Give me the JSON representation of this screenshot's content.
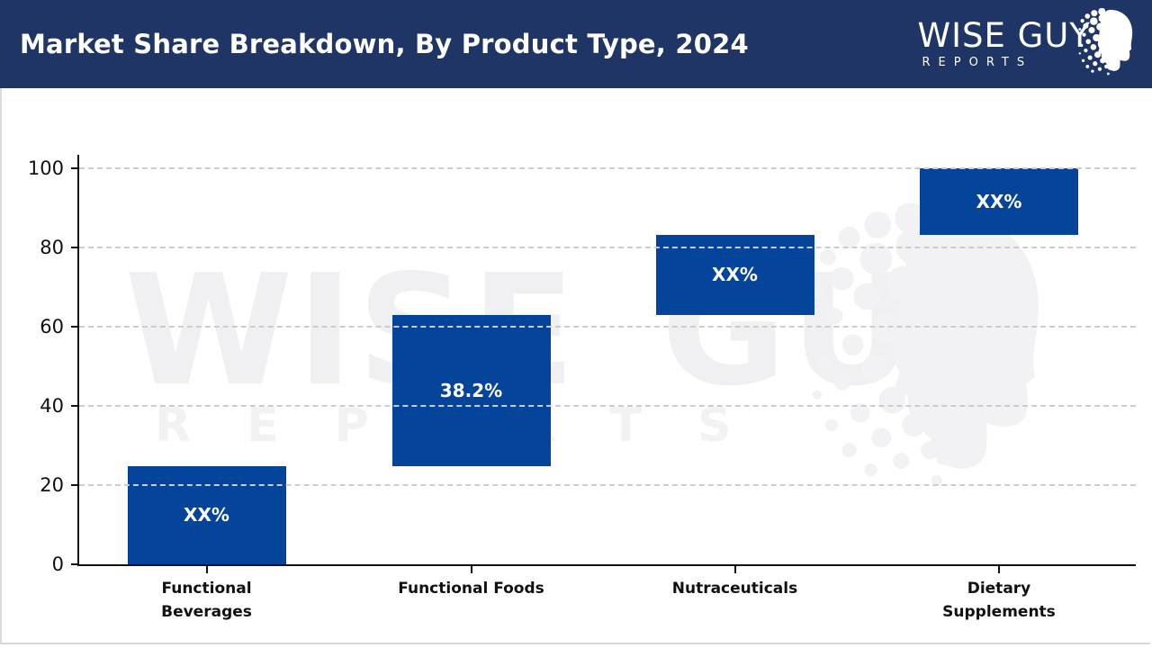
{
  "header": {
    "title": "Market Share Breakdown, By Product Type, 2024",
    "bg_color": "#1f3565",
    "text_color": "#ffffff",
    "logo": {
      "line1": "WISE GUY",
      "line2": "REPORTS",
      "face_icon": "dotted-head-profile"
    }
  },
  "watermark": {
    "line1": "WISE GUY",
    "line2": "REPORTS",
    "head_icon": "dotted-head-profile",
    "color": "#f0f0f2"
  },
  "chart_data": {
    "type": "bar",
    "subtype": "waterfall-floating-bars",
    "title": "Market Share Breakdown, By Product Type, 2024",
    "xlabel": "",
    "ylabel": "",
    "categories": [
      "Functional Beverages",
      "Functional Foods",
      "Nutraceuticals",
      "Dietary Supplements"
    ],
    "category_lines": [
      [
        "Functional",
        "Beverages"
      ],
      [
        "Functional Foods"
      ],
      [
        "Nutraceuticals"
      ],
      [
        "Dietary",
        "Supplements"
      ]
    ],
    "segments": [
      {
        "category": "Functional Beverages",
        "start": 0,
        "end": 24.8,
        "size": 24.8,
        "label": "XX%"
      },
      {
        "category": "Functional Foods",
        "start": 24.8,
        "end": 63.0,
        "size": 38.2,
        "label": "38.2%"
      },
      {
        "category": "Nutraceuticals",
        "start": 63.0,
        "end": 83.2,
        "size": 20.2,
        "label": "XX%"
      },
      {
        "category": "Dietary Supplements",
        "start": 83.2,
        "end": 100,
        "size": 16.8,
        "label": "XX%"
      }
    ],
    "yticks": [
      0,
      20,
      40,
      60,
      80,
      100
    ],
    "ylim": [
      0,
      103.5
    ],
    "grid": true,
    "legend": false,
    "bar_color": "#05449b",
    "bar_label_color": "#ffffff",
    "gridline_color": "#cccccc",
    "axis_color": "#111111"
  }
}
